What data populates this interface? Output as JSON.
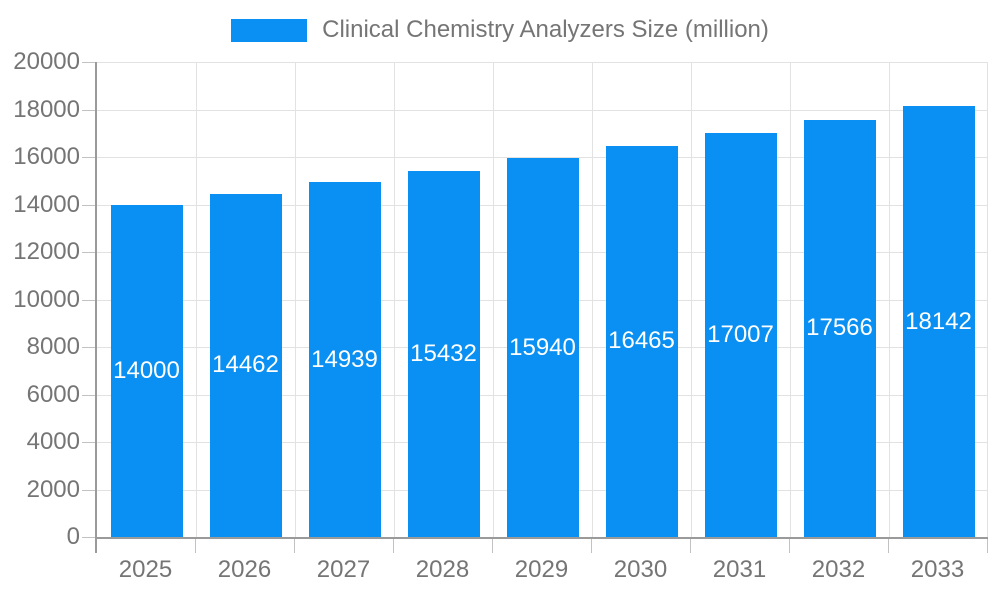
{
  "chart_data": {
    "type": "bar",
    "title": "Clinical Chemistry Analyzers Size (million)",
    "legend": {
      "label": "Clinical Chemistry Analyzers Size (million)",
      "position": "top"
    },
    "categories": [
      "2025",
      "2026",
      "2027",
      "2028",
      "2029",
      "2030",
      "2031",
      "2032",
      "2033"
    ],
    "series": [
      {
        "name": "Clinical Chemistry Analyzers Size (million)",
        "values": [
          14000,
          14462,
          14939,
          15432,
          15940,
          16465,
          17007,
          17566,
          18142
        ]
      }
    ],
    "value_labels_shown": true,
    "xlabel": "",
    "ylabel": "",
    "ylim": [
      0,
      20000
    ],
    "ytick_step": 2000,
    "yticks": [
      0,
      2000,
      4000,
      6000,
      8000,
      10000,
      12000,
      14000,
      16000,
      18000,
      20000
    ],
    "grid": true,
    "colors": {
      "bar": "#0A90F2",
      "axis": "#9A9A9A",
      "grid": "#E2E2E2",
      "tick": "#C2C2C2",
      "axis_label": "#757575",
      "value_label": "#FFFFFF",
      "background": "#FFFFFF"
    }
  }
}
